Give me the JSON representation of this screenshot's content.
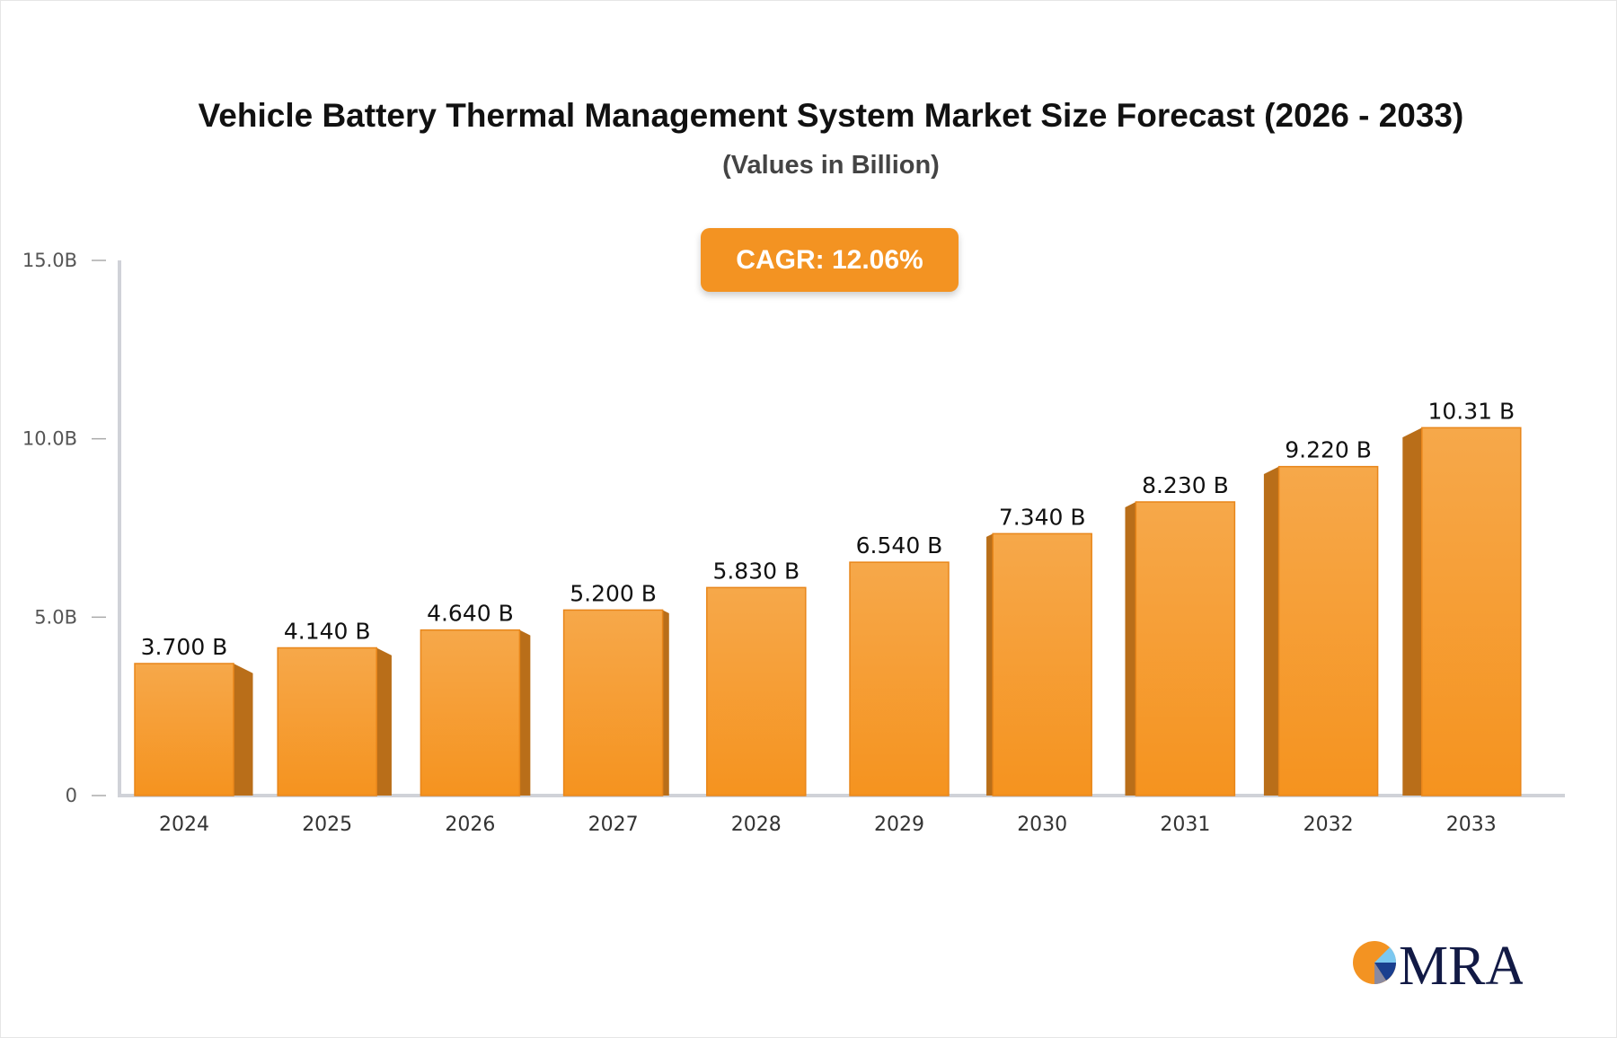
{
  "chart_data": {
    "type": "bar",
    "title": "Vehicle Battery Thermal Management System Market Size Forecast (2026 - 2033)",
    "subtitle": "(Values in Billion)",
    "categories": [
      "2024",
      "2025",
      "2026",
      "2027",
      "2028",
      "2029",
      "2030",
      "2031",
      "2032",
      "2033"
    ],
    "values": [
      3.7,
      4.14,
      4.64,
      5.2,
      5.83,
      6.54,
      7.34,
      8.23,
      9.22,
      10.31
    ],
    "data_labels": [
      "3.700 B",
      "4.140 B",
      "4.640 B",
      "5.200 B",
      "5.830 B",
      "6.540 B",
      "7.340 B",
      "8.230 B",
      "9.220 B",
      "10.31 B"
    ],
    "ylim": [
      0,
      15
    ],
    "yticks": [
      0,
      5,
      10,
      15
    ],
    "ytick_labels": [
      "0",
      "5.0B",
      "10.0B",
      "15.0B"
    ],
    "grid": false,
    "bar_color": "#f39322",
    "annotation": "CAGR: 12.06%"
  },
  "logo": {
    "text": "MRA"
  }
}
